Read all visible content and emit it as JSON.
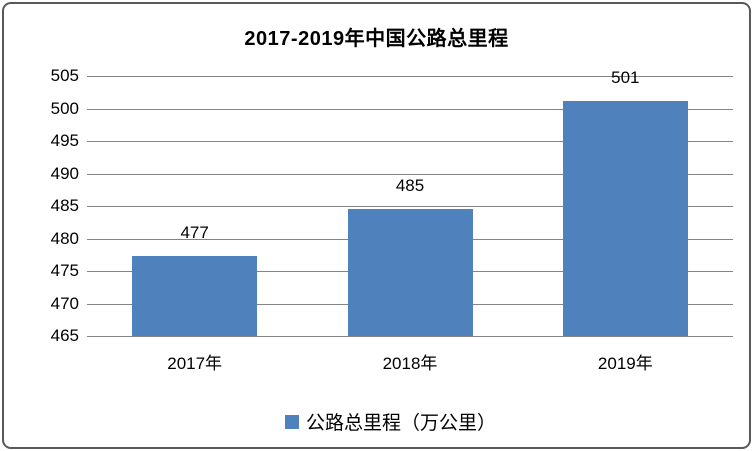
{
  "window": {
    "background": "#ffffff",
    "border_color": "#595959"
  },
  "chart_data": {
    "type": "bar",
    "title": "2017-2019年中国公路总里程",
    "categories": [
      "2017年",
      "2018年",
      "2019年"
    ],
    "series": [
      {
        "name": "公路总里程（万公里）",
        "values": [
          477,
          485,
          501
        ],
        "values_plotted": [
          477.3,
          484.5,
          501.1
        ],
        "color": "#4F81BD"
      }
    ],
    "data_labels": [
      "477",
      "485",
      "501"
    ],
    "xlabel": "",
    "ylabel": "",
    "y_axis": {
      "min": 465,
      "max": 505,
      "step": 5,
      "tick_labels": [
        "465",
        "470",
        "475",
        "480",
        "485",
        "490",
        "495",
        "500",
        "505"
      ]
    },
    "grid": true,
    "gridline_color": "#848484",
    "legend": {
      "position": "bottom",
      "marker_color": "#4F81BD",
      "label": "公路总里程（万公里）"
    }
  }
}
